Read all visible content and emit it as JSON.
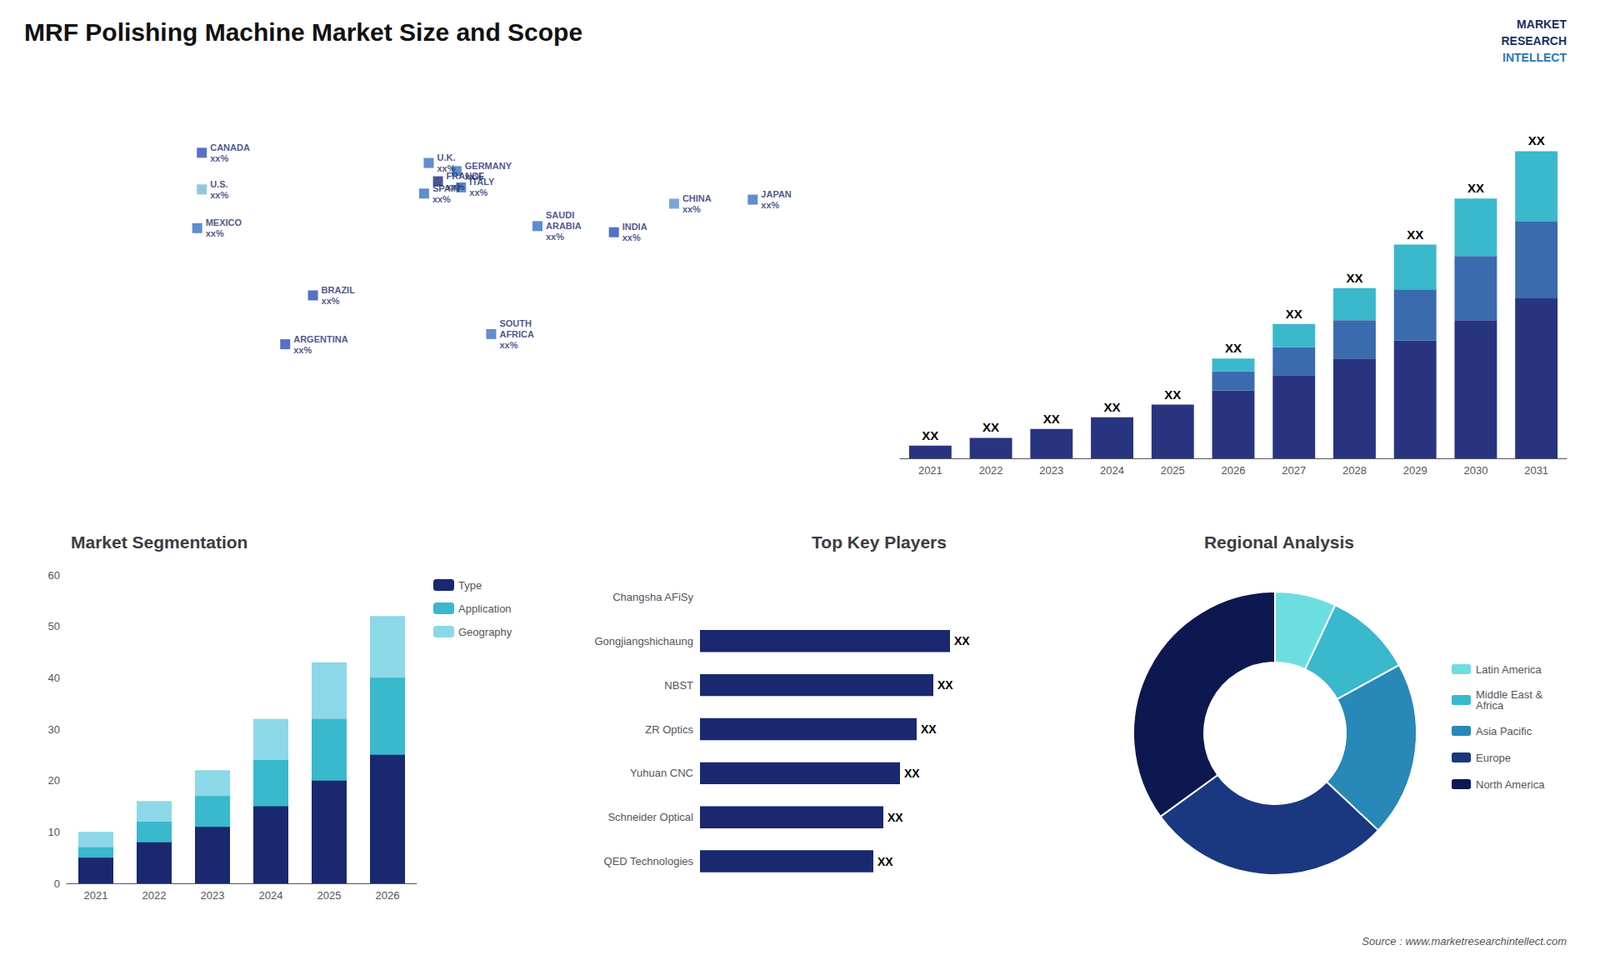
{
  "title": "MRF Polishing Machine Market Size and Scope",
  "annotations": [
    "MARKET",
    "RESEARCH",
    "INTELLECT",
    "Source : www.marketresearchintellect.com"
  ],
  "chart_data": [
    {
      "type": "scatter",
      "x": [
        -100,
        -100,
        -102,
        -52,
        -64,
        -2,
        2,
        -4,
        10,
        12,
        45,
        25,
        104,
        138,
        78
      ],
      "values": [
        60,
        42,
        23,
        -10,
        -34,
        55,
        46,
        40,
        51,
        43,
        24,
        -29,
        35,
        37,
        21
      ],
      "annotations": [
        "CANADA\nxx%",
        "U.S.\nxx%",
        "MEXICO\nxx%",
        "BRAZIL\nxx%",
        "ARGENTINA\nxx%",
        "U.K.\nxx%",
        "FRANCE\nxx%",
        "SPAIN\nxx%",
        "GERMANY\nxx%",
        "ITALY\nxx%",
        "SAUDI\nARABIA\nxx%",
        "SOUTH\nAFRICA\nxx%",
        "CHINA\nxx%",
        "JAPAN\nxx%",
        "INDIA\nxx%"
      ],
      "colors": [
        "#2a4eb8",
        "#78b8d8",
        "#3870c0",
        "#2a4eb8",
        "#2a4eb8",
        "#3870c0",
        "#1a2b7a",
        "#3870c0",
        "#3870c0",
        "#3870c0",
        "#3870c0",
        "#3870c0",
        "#5890d0",
        "#3870c0",
        "#2a4eb8"
      ],
      "xlim": [
        -180,
        180
      ],
      "xticks": [
        -180,
        -90,
        0,
        90,
        180
      ],
      "ylim": [
        -90,
        90
      ],
      "yticks": [
        -90,
        -45,
        0,
        45,
        90
      ],
      "tick_labels": false,
      "grid": false
    },
    {
      "type": "bar",
      "stacked": true,
      "categories": [
        "2021",
        "2022",
        "2023",
        "2024",
        "2025",
        "2026",
        "2027",
        "2028",
        "2029",
        "2030",
        "2031"
      ],
      "series": [
        {
          "color": "#283480",
          "values": [
            1.0,
            1.6,
            2.3,
            3.2,
            4.2,
            5.3,
            6.5,
            7.8,
            9.2,
            10.8,
            12.5
          ]
        },
        {
          "color": "#3a6baf",
          "values": [
            0.0,
            0.0,
            0.0,
            0.0,
            0.0,
            1.5,
            2.2,
            3.0,
            4.0,
            5.0,
            6.0
          ]
        },
        {
          "color": "#3ab8cc",
          "values": [
            0.0,
            0.0,
            0.0,
            0.0,
            0.0,
            1.0,
            1.8,
            2.5,
            3.5,
            4.5,
            5.5
          ]
        }
      ],
      "annotations": [
        "XX",
        "XX",
        "XX",
        "XX",
        "XX",
        "XX",
        "XX",
        "XX",
        "XX",
        "XX",
        "XX"
      ],
      "ylim": [
        0,
        28
      ],
      "yticks": [
        0,
        7,
        14,
        21,
        28
      ],
      "tick_labels": "x",
      "grid": false
    },
    {
      "type": "bar",
      "title": "Market Segmentation",
      "stacked": false,
      "categories": [
        "2021",
        "2022",
        "2023",
        "2024",
        "2025",
        "2026"
      ],
      "series": [
        {
          "name": "Geography",
          "color": "#8dd8e8",
          "values": [
            10,
            16,
            22,
            32,
            43,
            52
          ]
        },
        {
          "name": "Application",
          "color": "#3ab8cc",
          "values": [
            7,
            12,
            17,
            24,
            32,
            40
          ]
        },
        {
          "name": "Type",
          "color": "#1a2870",
          "values": [
            5,
            8,
            11,
            15,
            20,
            25
          ]
        }
      ],
      "ylim": [
        0,
        60
      ],
      "yticks": [
        0,
        10,
        20,
        30,
        40,
        50,
        60
      ],
      "legend": "upper right",
      "grid": false
    },
    {
      "type": "bar",
      "orientation": "horizontal",
      "title": "Top Key Players",
      "categories": [
        "Changsha AFiSy",
        "Gongjiangshichaung",
        "NBST",
        "ZR Optics",
        "Yuhuan CNC",
        "Schneider Optical",
        "QED Technologies"
      ],
      "values": [
        0.0,
        7.5,
        7.0,
        6.5,
        6.0,
        5.5,
        5.2
      ],
      "value_labels": [
        null,
        "XX",
        "XX",
        "XX",
        "XX",
        "XX",
        "XX"
      ],
      "color": "#1a2870",
      "xlim": [
        0,
        10.5
      ],
      "xticks": [
        0,
        3.5,
        7,
        10.5
      ],
      "tick_labels": "y",
      "grid": false
    },
    {
      "type": "pie",
      "title": "Regional Analysis",
      "categories": [
        "Latin America",
        "Middle East &\nAfrica",
        "Asia Pacific",
        "Europe",
        "North America"
      ],
      "values": [
        7,
        10,
        20,
        28,
        35
      ],
      "colors": [
        "#6ddee0",
        "#3ab8cc",
        "#2888b8",
        "#1a3880",
        "#0d1850"
      ],
      "legend": "right"
    }
  ]
}
